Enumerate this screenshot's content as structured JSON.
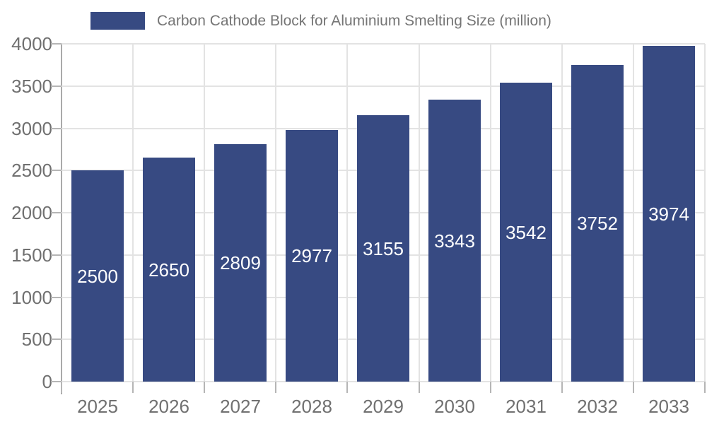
{
  "chart_data": {
    "type": "bar",
    "title": "Carbon Cathode Block for Aluminium Smelting Size (million)",
    "categories": [
      "2025",
      "2026",
      "2027",
      "2028",
      "2029",
      "2030",
      "2031",
      "2032",
      "2033"
    ],
    "series": [
      {
        "name": "Carbon Cathode Block for Aluminium Smelting Size (million)",
        "values": [
          2500,
          2650,
          2809,
          2977,
          3155,
          3343,
          3542,
          3752,
          3974
        ]
      }
    ],
    "xlabel": "",
    "ylabel": "",
    "ylim": [
      0,
      4000
    ],
    "yticks": [
      0,
      500,
      1000,
      1500,
      2000,
      2500,
      3000,
      3500,
      4000
    ],
    "grid": "on",
    "legend_position": "top",
    "bar_value_labels": "inside-center",
    "colors": {
      "bar": "#374a82",
      "bar_label": "#ffffff",
      "grid": "#e3e3e3",
      "axis": "#aaaaaa",
      "tick_mark": "#b5b5b5",
      "tick_text": "#707070",
      "legend_text": "#757575",
      "background": "#ffffff"
    }
  }
}
